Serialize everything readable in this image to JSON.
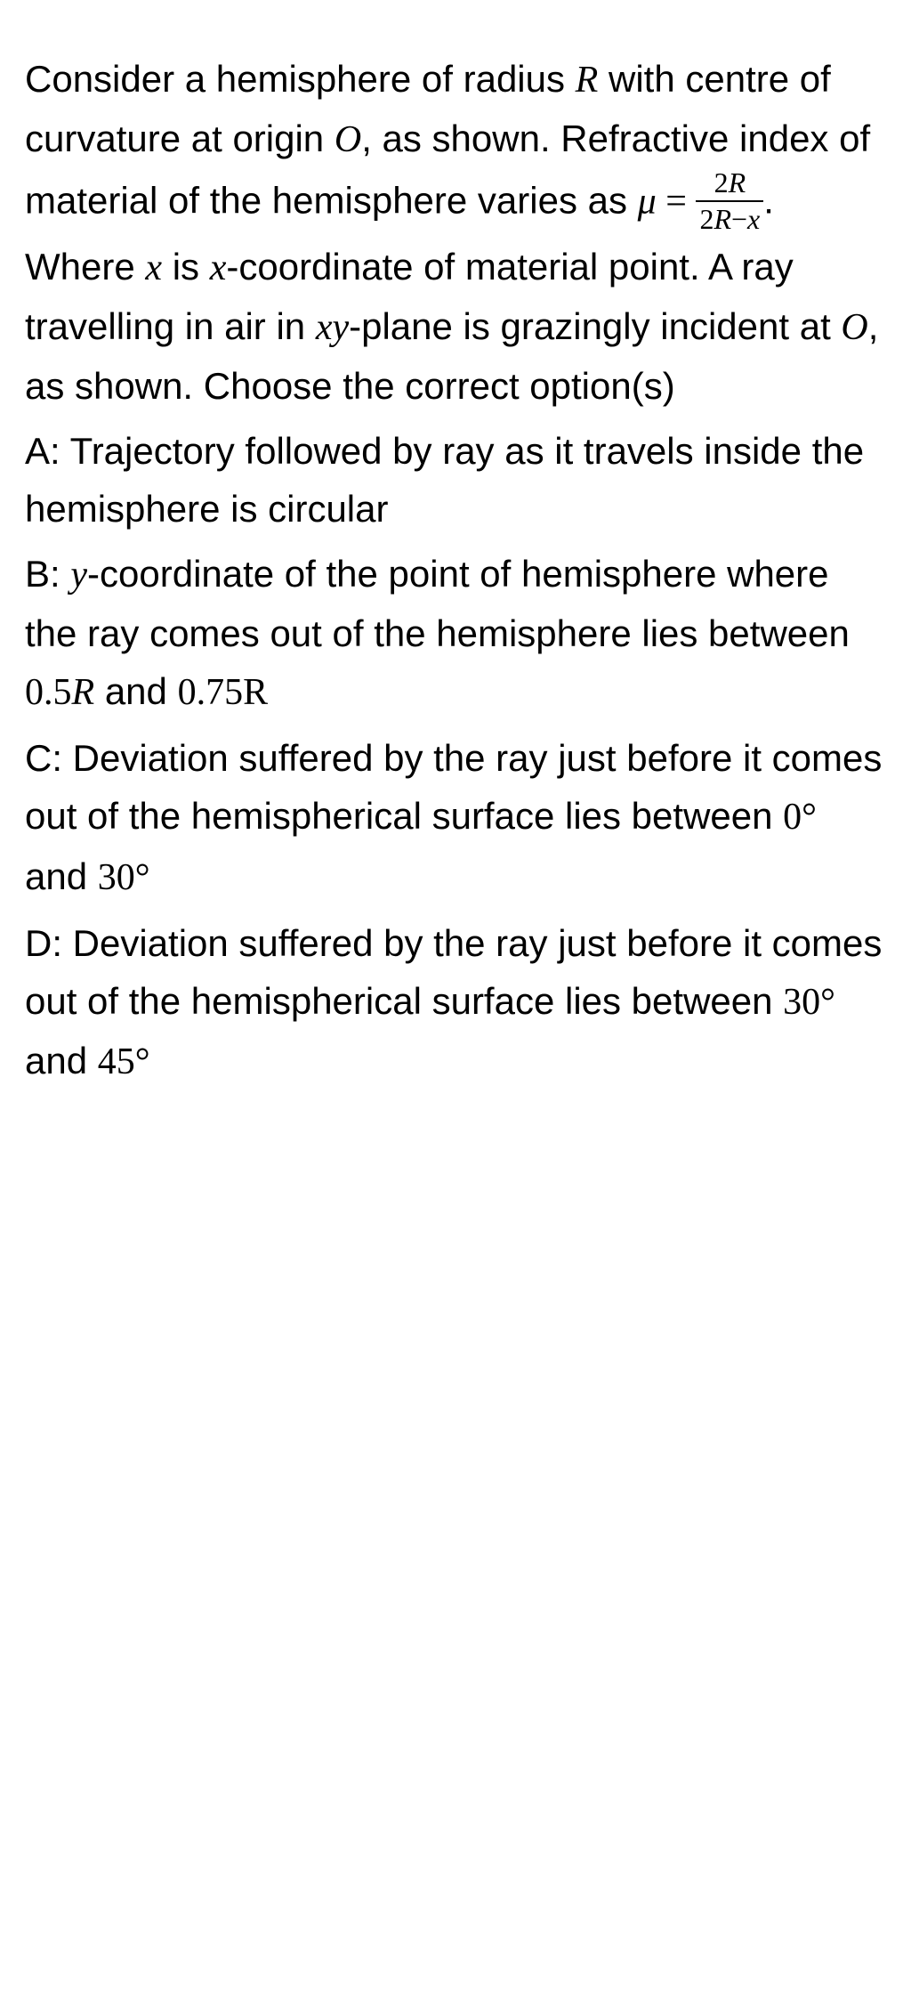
{
  "question": {
    "p1a": "Consider a hemisphere of radius ",
    "R": "R",
    "p1b": " with centre of curvature at origin ",
    "O": "O",
    "p1c": ", as shown. Refractive index of material of the hemisphere varies as ",
    "mu": "μ",
    "eq": " = ",
    "frac_num": "2R",
    "frac_den": "2R−x",
    "p1d": ". Where ",
    "x": "x",
    "p1e": " is ",
    "x2": "x",
    "p1f": "-coordinate of material point. A ray travelling in air in ",
    "xy": "xy",
    "p1g": "-plane is grazingly incident at ",
    "O2": "O",
    "p1h": ", as shown. Choose the correct option(s)"
  },
  "options": {
    "A": {
      "label": "A:",
      "t1": " Trajectory followed by ray as it travels inside the hemisphere is circular"
    },
    "B": {
      "label": "B:",
      "t1": " ",
      "y": "y",
      "t2": "-coordinate of the point of hemisphere where the ray comes out of the hemisphere lies between ",
      "n1": "0.5R",
      "t3": " and ",
      "n2": "0.75R"
    },
    "C": {
      "label": "C:",
      "t1": " Deviation suffered by the ray just before it comes out of the hemispherical surface lies between ",
      "d1": "0°",
      "t2": " and ",
      "d2": "30°"
    },
    "D": {
      "label": "D:",
      "t1": " Deviation suffered by the ray just before it comes out of the hemispherical surface lies between ",
      "d1": "30°",
      "t2": " and ",
      "d2": "45°"
    }
  }
}
